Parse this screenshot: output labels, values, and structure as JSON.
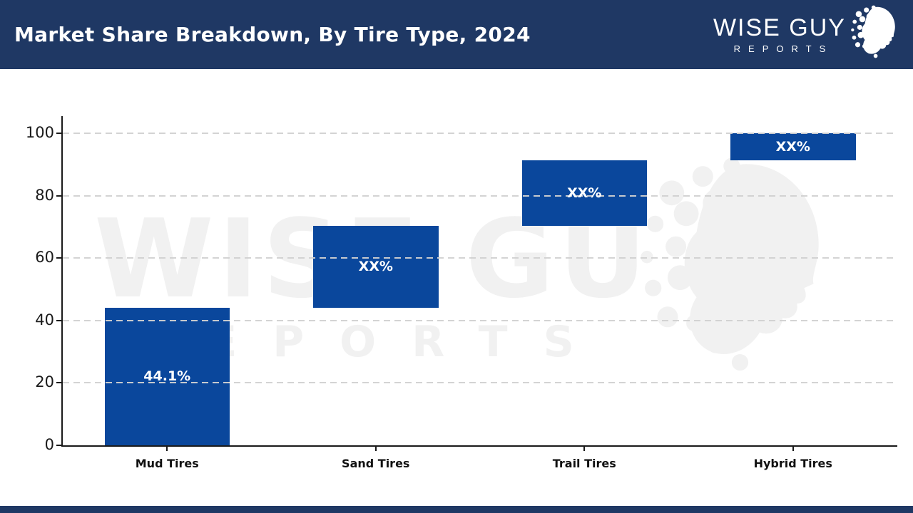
{
  "header": {
    "title": "Market Share Breakdown, By Tire Type, 2024",
    "logo": {
      "line1": "WISE GUY",
      "line2": "REPORTS"
    }
  },
  "watermark": {
    "line1": "WISE GU",
    "line2": "REPORTS"
  },
  "chart_data": {
    "type": "bar",
    "subtype": "waterfall",
    "title": "Market Share Breakdown, By Tire Type, 2024",
    "categories": [
      "Mud Tires",
      "Sand Tires",
      "Trail Tires",
      "Hybrid Tires"
    ],
    "segments": [
      {
        "label": "44.1%",
        "start": 0,
        "end": 44.1
      },
      {
        "label": "XX%",
        "start": 44.1,
        "end": 70.4
      },
      {
        "label": "XX%",
        "start": 70.4,
        "end": 91.3
      },
      {
        "label": "XX%",
        "start": 91.3,
        "end": 100
      }
    ],
    "yticks": [
      0,
      20,
      40,
      60,
      80,
      100
    ],
    "ylim": [
      0,
      105
    ],
    "xlabel": "",
    "ylabel": "",
    "bar_color": "#0a479c",
    "grid": "dashed-horizontal",
    "legend": "none"
  },
  "colors": {
    "header_bg": "#1f3864",
    "bar": "#0a479c",
    "grid": "#d1d1d1",
    "axis": "#1a1a1a",
    "watermark": "#f1f1f1"
  }
}
